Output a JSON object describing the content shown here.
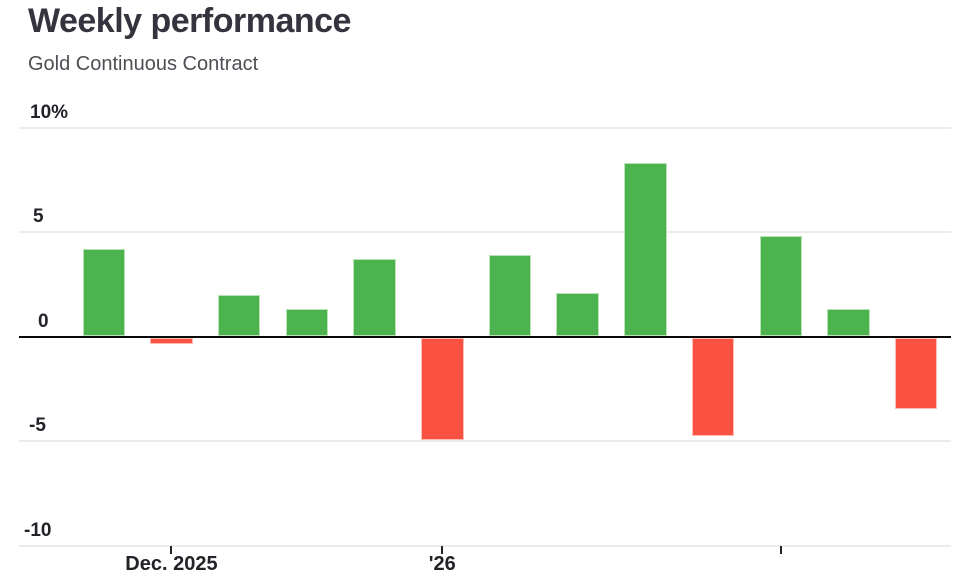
{
  "page": {
    "background": "#ffffff"
  },
  "chart_data": {
    "type": "bar",
    "title": "Weekly performance",
    "subtitle": "Gold Continuous Contract",
    "unit": "%",
    "values": [
      4.2,
      -0.3,
      2.0,
      1.3,
      3.7,
      -4.9,
      3.9,
      2.1,
      8.3,
      -4.7,
      4.8,
      1.3,
      -3.4
    ],
    "ylim": [
      -10,
      10
    ],
    "y_ticks": [
      {
        "value": 10,
        "label": "10%"
      },
      {
        "value": 5,
        "label": "5"
      },
      {
        "value": 0,
        "label": "0"
      },
      {
        "value": -5,
        "label": "-5"
      },
      {
        "value": -10,
        "label": "-10"
      }
    ],
    "x_ticks": [
      {
        "bar_index": 1,
        "label": "Dec. 2025"
      },
      {
        "bar_index": 5,
        "label": "'26"
      },
      {
        "bar_index": 10,
        "label": ""
      }
    ],
    "grid": true,
    "legend": false,
    "colors": {
      "positive": "#4cb34f",
      "negative": "#fb5142",
      "positive_edge": "#b9e2b5",
      "negative_edge": "#fdbdb2",
      "zero_line": "#0a0a0a",
      "gridline": "#ebebeb",
      "title": "#33343d",
      "subtitle": "#4e4e54",
      "axis_label": "#222228",
      "tick": "#222228"
    }
  }
}
